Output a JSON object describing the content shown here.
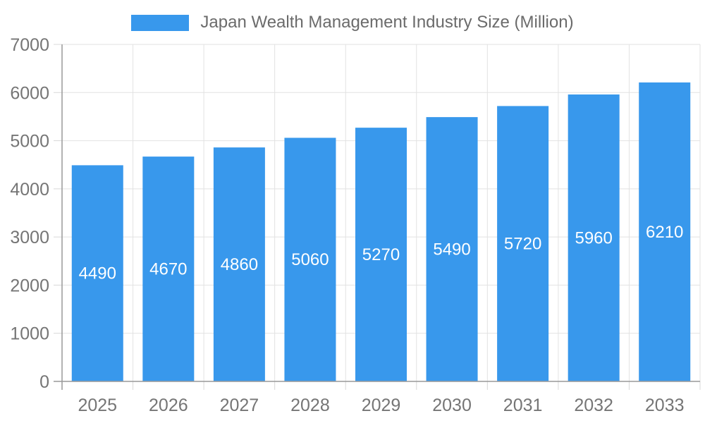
{
  "legend": {
    "label": "Japan Wealth Management Industry Size (Million)"
  },
  "chart_data": {
    "type": "bar",
    "title": "Japan Wealth Management Industry Size (Million)",
    "categories": [
      "2025",
      "2026",
      "2027",
      "2028",
      "2029",
      "2030",
      "2031",
      "2032",
      "2033"
    ],
    "values": [
      4490,
      4670,
      4860,
      5060,
      5270,
      5490,
      5720,
      5960,
      6210
    ],
    "xlabel": "",
    "ylabel": "",
    "ylim": [
      0,
      7000
    ],
    "ytick_step": 1000,
    "y_tick_labels": [
      "0",
      "1000",
      "2000",
      "3000",
      "4000",
      "5000",
      "6000",
      "7000"
    ],
    "grid": true,
    "legend_position": "top",
    "value_labels": "inside-center",
    "colors": {
      "bar": "#3898EC",
      "grid": "#E2E2E2",
      "axis_line": "#999999",
      "tick": "#D8D8D8",
      "axis_text": "#757575",
      "legend_text": "#6B6B6B",
      "value_label": "#FFFFFF",
      "background": "#FFFFFF"
    }
  }
}
